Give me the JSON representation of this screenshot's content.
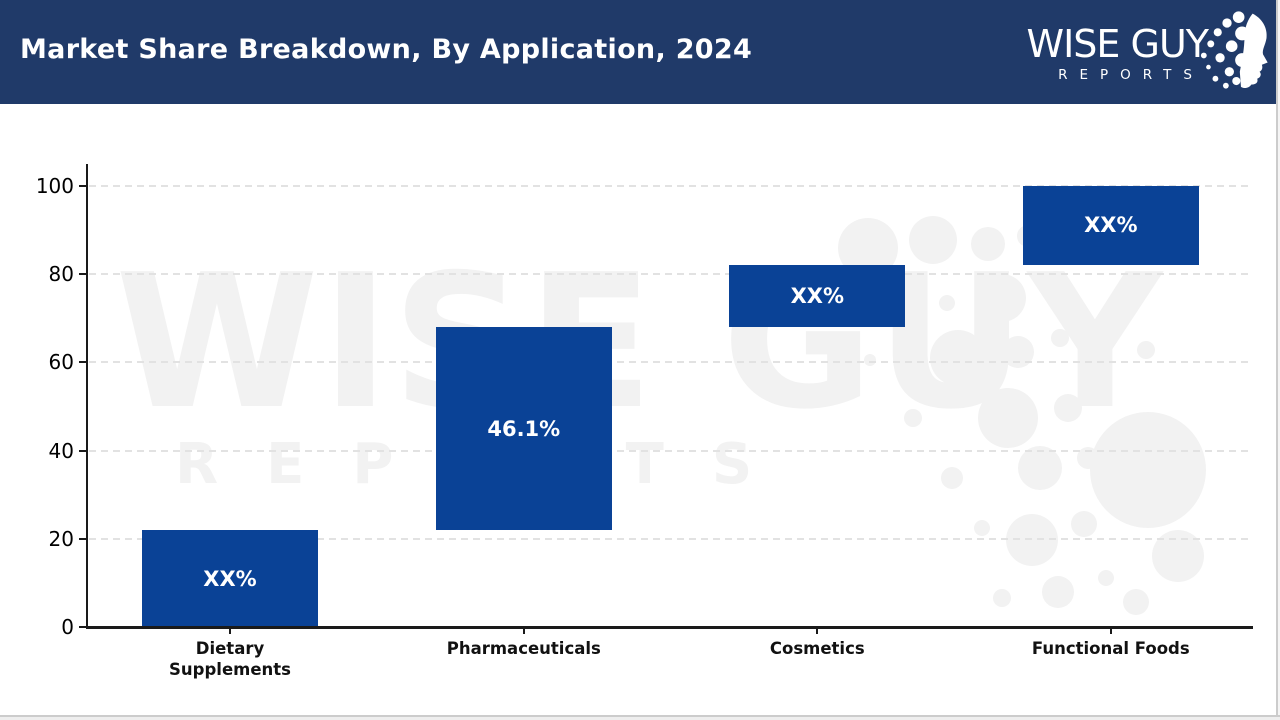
{
  "header": {
    "title": "Market Share Breakdown, By Application, 2024"
  },
  "logo": {
    "line1": "WISE GUY",
    "line2": "REPORTS"
  },
  "watermark": {
    "line1": "WISE GUY",
    "line2": "REPORTS"
  },
  "colors": {
    "header_bg": "#203a69",
    "bar": "#0a4296",
    "grid": "#e2e2e2",
    "axis": "#1a1a1a",
    "watermark": "#f2f2f2",
    "text_on_dark": "#ffffff"
  },
  "chart_data": {
    "type": "bar",
    "variant": "floating-waterfall",
    "title": "Market Share Breakdown, By Application, 2024",
    "categories": [
      "Dietary Supplements",
      "Pharmaceuticals",
      "Cosmetics",
      "Functional Foods"
    ],
    "segments": [
      {
        "category": "Dietary Supplements",
        "start": 0,
        "end": 21.9,
        "label": "XX%"
      },
      {
        "category": "Pharmaceuticals",
        "start": 21.9,
        "end": 68.0,
        "label": "46.1%"
      },
      {
        "category": "Cosmetics",
        "start": 68.0,
        "end": 82.1,
        "label": "XX%"
      },
      {
        "category": "Functional Foods",
        "start": 82.1,
        "end": 100,
        "label": "XX%"
      }
    ],
    "values": [
      21.9,
      46.1,
      14.1,
      17.9
    ],
    "xlabel": "",
    "ylabel": "",
    "ylim": [
      0,
      100
    ],
    "yticks": [
      0,
      20,
      40,
      60,
      80,
      100
    ],
    "grid": "horizontal-dashed",
    "legend": "none",
    "bar_color": "#0a4296"
  }
}
